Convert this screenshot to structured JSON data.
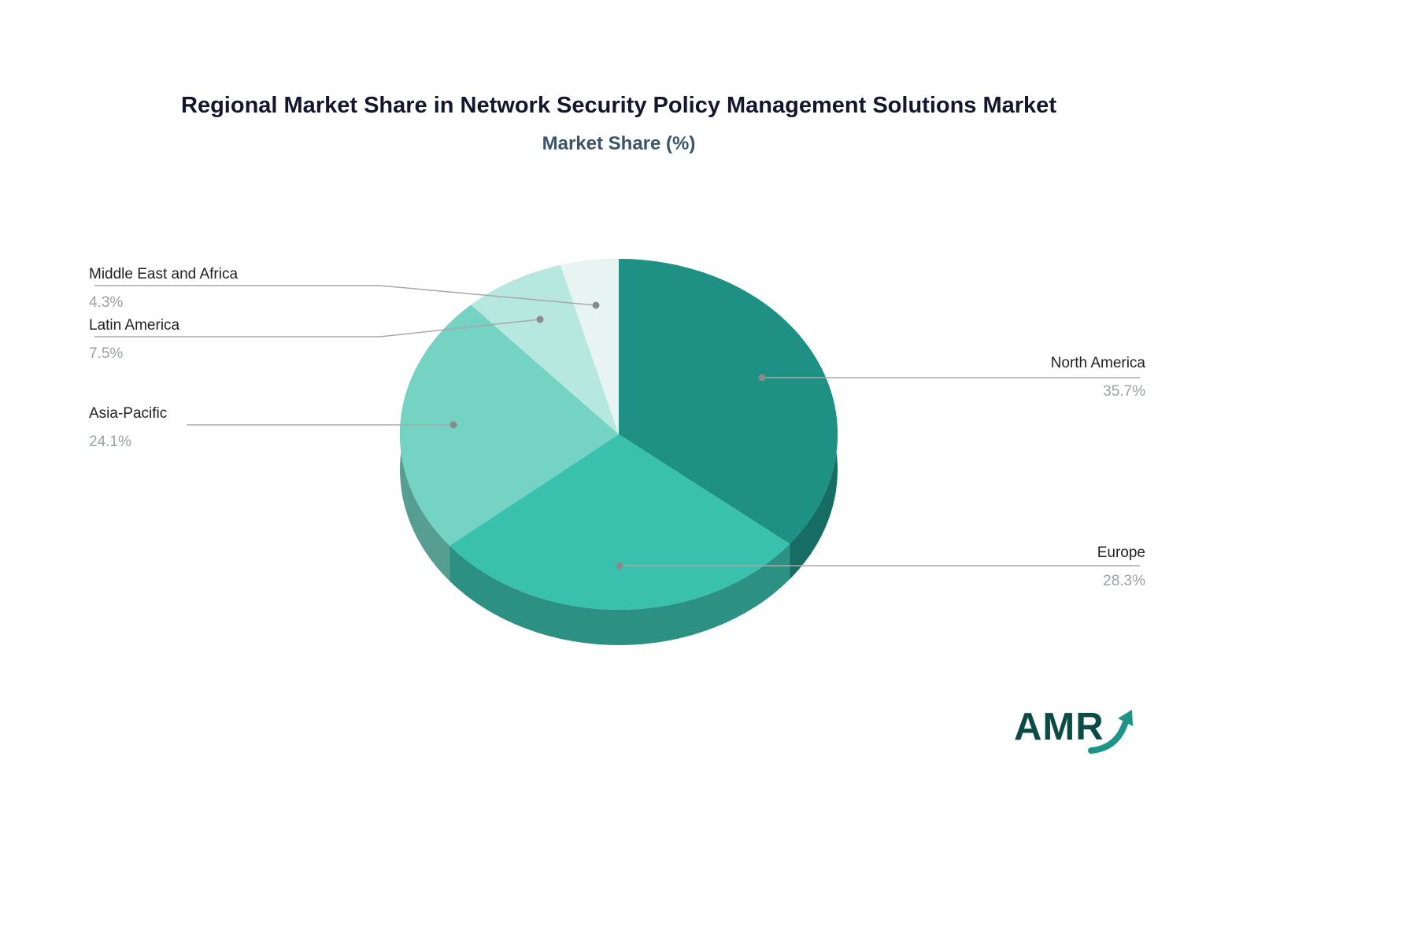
{
  "title": "Regional Market Share in Network Security Policy Management Solutions Market",
  "subtitle": "Market Share (%)",
  "colors": {
    "background": "#ffffff",
    "title": "#15152e",
    "subtitle": "#3a5566",
    "label_name": "#212121",
    "label_value": "#9aa0a4",
    "leader_line": "#a8a8a8",
    "leader_dot": "#8a8a8a",
    "logo_text": "#0c4a45",
    "logo_arrow": "#1c9488"
  },
  "logo": {
    "text": "AMR",
    "icon": "trend-arrow-icon"
  },
  "chart_data": {
    "type": "pie",
    "title": "Regional Market Share in Network Security Policy Management Solutions Market",
    "subtitle": "Market Share (%)",
    "unit": "%",
    "effect": "3d",
    "direction": "clockwise",
    "start_angle_deg": 0,
    "legend": "none",
    "labels": [
      "North America",
      "Europe",
      "Asia-Pacific",
      "Latin America",
      "Middle East and Africa"
    ],
    "values": [
      35.7,
      28.3,
      24.1,
      7.5,
      4.3
    ],
    "display_values": [
      "35.7%",
      "28.3%",
      "24.1%",
      "7.5%",
      "4.3%"
    ],
    "colors": [
      "#1e9184",
      "#3ac1ae",
      "#74d3c3",
      "#b7e8e0",
      "#e7f4f1"
    ]
  }
}
